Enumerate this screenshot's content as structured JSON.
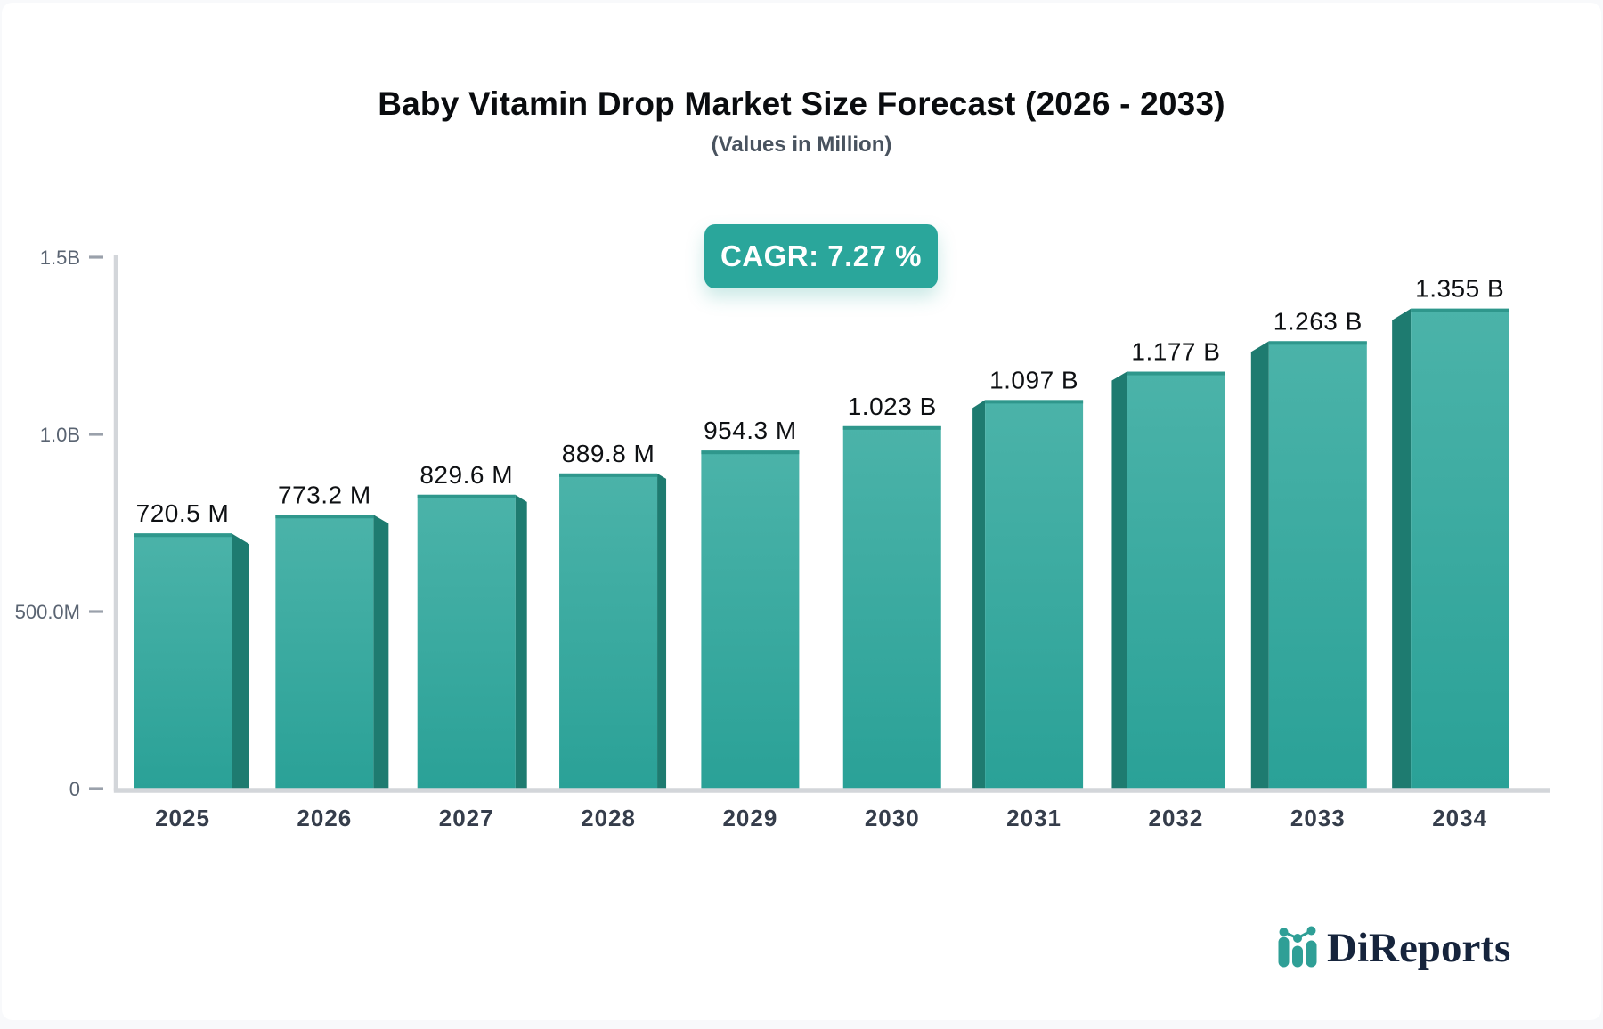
{
  "title": "Baby Vitamin Drop Market Size Forecast (2026 - 2033)",
  "subtitle": "(Values in Million)",
  "badge": {
    "label": "CAGR: 7.27 %"
  },
  "logo": {
    "text": "DiReports"
  },
  "colors": {
    "accent": "#2aa69b",
    "bar_face_top": "#4bb3a9",
    "bar_face_bottom": "#2aa197",
    "bar_side": "#1e7b70",
    "bar_top_edge": "#2f978c",
    "axis_line": "#d3d6da",
    "tick_text": "#5a6472",
    "tick_dash": "#9aa1ab",
    "year_text": "#353d4b",
    "value_text": "#0e1013",
    "background": "#f8f9fb",
    "card": "#ffffff",
    "logo_text": "#16243c",
    "logo_icon": "#2f9f96"
  },
  "chart_data": {
    "type": "bar",
    "title": "Baby Vitamin Drop Market Size Forecast (2026 - 2033)",
    "subtitle": "(Values in Million)",
    "xlabel": "",
    "ylabel": "",
    "categories": [
      "2025",
      "2026",
      "2027",
      "2028",
      "2029",
      "2030",
      "2031",
      "2032",
      "2033",
      "2034"
    ],
    "values_millions": [
      720.5,
      773.2,
      829.6,
      889.8,
      954.3,
      1023,
      1097,
      1177,
      1263,
      1355
    ],
    "value_labels": [
      "720.5 M",
      "773.2 M",
      "829.6 M",
      "889.8 M",
      "954.3 M",
      "1.023 B",
      "1.097 B",
      "1.177 B",
      "1.263 B",
      "1.355 B"
    ],
    "ylim_millions": [
      0,
      1500
    ],
    "yticks": [
      {
        "label": "1.5B",
        "value_millions": 1500
      },
      {
        "label": "1.0B",
        "value_millions": 1000
      },
      {
        "label": "500.0M",
        "value_millions": 500
      },
      {
        "label": "0",
        "value_millions": 0
      }
    ],
    "grid": false,
    "legend": false,
    "cagr_percent": "7.27"
  }
}
